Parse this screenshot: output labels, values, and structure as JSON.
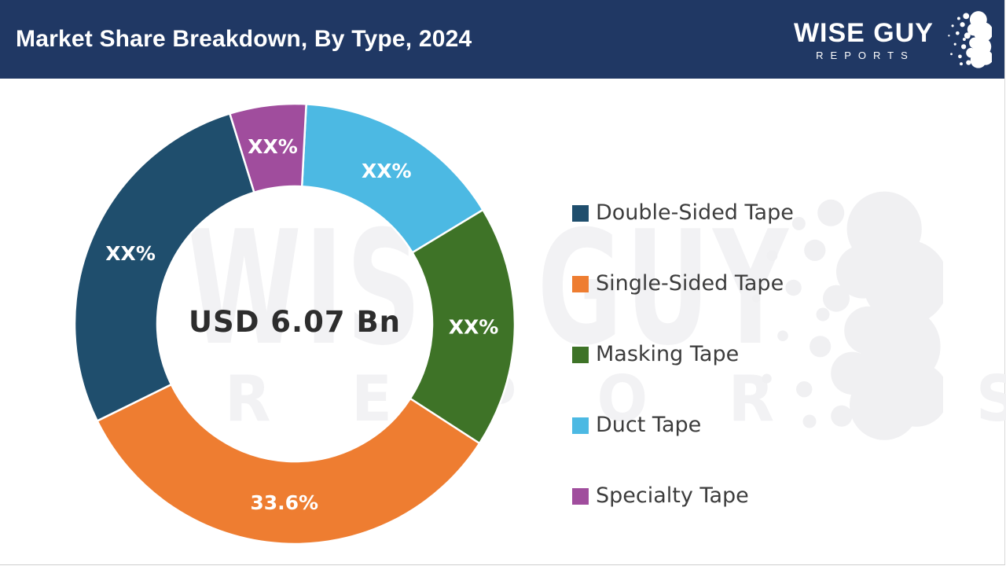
{
  "header": {
    "title": "Market Share Breakdown, By Type, 2024",
    "logo": {
      "line1": "WISE GUY",
      "line2": "REPORTS"
    }
  },
  "watermark": {
    "line1": "WISE GUY",
    "line2": "R E P O R T S"
  },
  "chart_data": {
    "type": "pie",
    "subtype": "donut",
    "title": "Market Share Breakdown, By Type, 2024",
    "center_label": "USD 6.07 Bn",
    "legend_position": "right",
    "start_angle_deg": 3,
    "draw_order": [
      "Duct Tape",
      "Masking Tape",
      "Single-Sided Tape",
      "Double-Sided Tape",
      "Specialty Tape"
    ],
    "slices": [
      {
        "name": "Double-Sided Tape",
        "value_pct": 27.5,
        "display_label": "XX%",
        "color": "#1f4e6d"
      },
      {
        "name": "Single-Sided Tape",
        "value_pct": 33.6,
        "display_label": "33.6%",
        "color": "#ee7d31"
      },
      {
        "name": "Masking Tape",
        "value_pct": 17.8,
        "display_label": "XX%",
        "color": "#3e7327"
      },
      {
        "name": "Duct Tape",
        "value_pct": 15.5,
        "display_label": "XX%",
        "color": "#4cb9e3"
      },
      {
        "name": "Specialty Tape",
        "value_pct": 5.6,
        "display_label": "XX%",
        "color": "#a04d9d"
      }
    ]
  },
  "colors": {
    "header_bg": "#203864",
    "page_bg": "#ffffff",
    "center_text": "#2d2d2d",
    "legend_text": "#3c3c3c",
    "watermark": "#f2f2f4",
    "slice_gap": "#ffffff"
  }
}
